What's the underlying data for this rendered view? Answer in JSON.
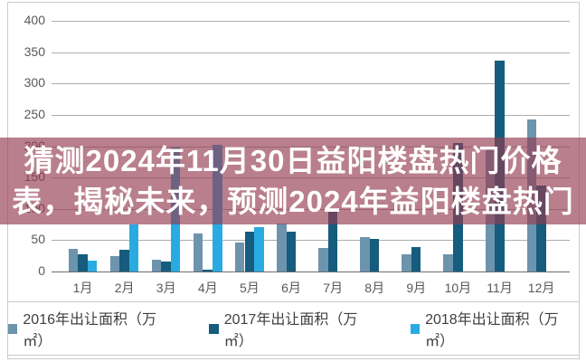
{
  "banner": {
    "line1": "猜测2024年11月30日益阳楼盘热门价格",
    "line2": "表，揭秘未来，预测2024年益阳楼盘热门",
    "background": "#93384f",
    "text_color": "#ffffff"
  },
  "chart_data": {
    "type": "bar",
    "title": "",
    "xlabel": "",
    "ylabel": "",
    "categories": [
      "1月",
      "2月",
      "3月",
      "4月",
      "5月",
      "6月",
      "7月",
      "8月",
      "9月",
      "10月",
      "11月",
      "12月"
    ],
    "series": [
      {
        "name": "2016年出让面积（万㎡）",
        "color": "#6d94ad",
        "values": [
          36,
          24,
          19,
          60,
          46,
          76,
          37,
          55,
          28,
          28,
          200,
          242
        ]
      },
      {
        "name": "2017年出让面积（万㎡）",
        "color": "#155c7e",
        "values": [
          28,
          35,
          16,
          3,
          64,
          64,
          98,
          52,
          39,
          205,
          336,
          137
        ]
      },
      {
        "name": "2018年出让面积（万㎡）",
        "color": "#29abe2",
        "values": [
          18,
          75,
          198,
          202,
          71,
          0,
          0,
          0,
          0,
          0,
          0,
          0
        ]
      }
    ],
    "ylim": [
      0,
      400
    ],
    "yticks": [
      0,
      50,
      100,
      150,
      200,
      250,
      300,
      350,
      400
    ],
    "grid": true,
    "legend_position": "bottom",
    "colors": {
      "gridline": "#adadad",
      "axis_line": "#6e6e6e",
      "tick_text": "#595959",
      "legend_text": "#3f3f3f",
      "frame_border": "#cbcbcb"
    }
  }
}
